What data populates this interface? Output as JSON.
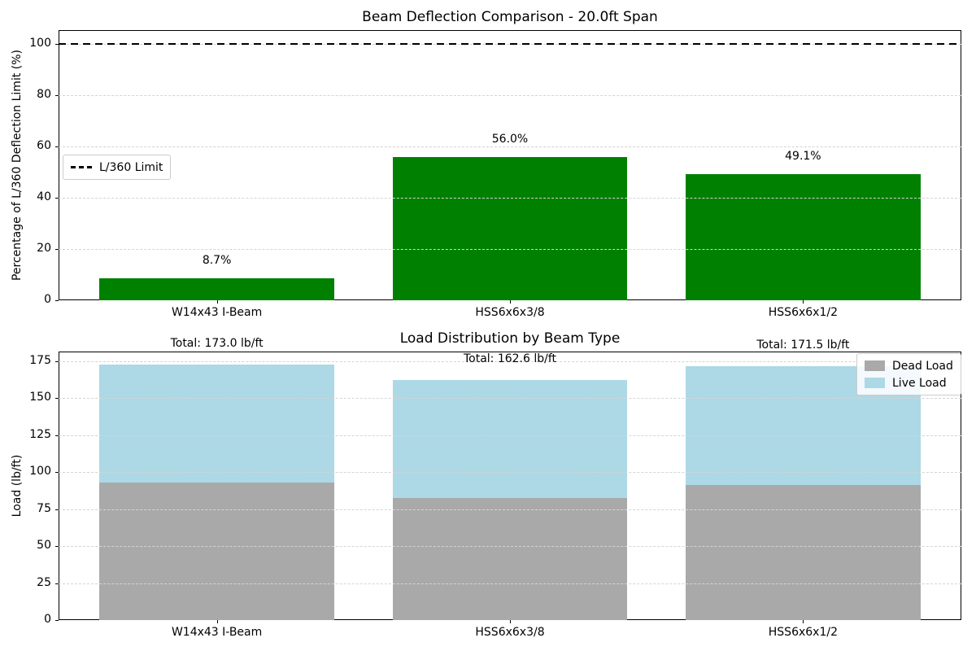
{
  "figure": {
    "background": "#ffffff"
  },
  "chart_data": [
    {
      "type": "bar",
      "title": "Beam Deflection Comparison - 20.0ft Span",
      "xlabel": "",
      "ylabel": "Percentage of L/360 Deflection Limit (%)",
      "categories": [
        "W14x43 I-Beam",
        "HSS6x6x3/8",
        "HSS6x6x1/2"
      ],
      "values": [
        8.7,
        56.0,
        49.1
      ],
      "value_labels": [
        "8.7%",
        "56.0%",
        "49.1%"
      ],
      "bar_color": "#008000",
      "yticks": [
        0,
        20,
        40,
        60,
        80,
        100
      ],
      "ylim": [
        0,
        105.4
      ],
      "grid": true,
      "reference_line": {
        "value": 100,
        "color": "#000000",
        "style": "dashed",
        "label": "L/360 Limit"
      },
      "legend": {
        "position": "center-left",
        "entries": [
          {
            "label": "L/360 Limit",
            "swatch": "dashed-line",
            "color": "#000000"
          }
        ]
      }
    },
    {
      "type": "stacked-bar",
      "title": "Load Distribution by Beam Type",
      "xlabel": "",
      "ylabel": "Load (lb/ft)",
      "categories": [
        "W14x43 I-Beam",
        "HSS6x6x3/8",
        "HSS6x6x1/2"
      ],
      "series": [
        {
          "name": "Dead Load",
          "color": "#a9a9a9",
          "values": [
            93.0,
            82.6,
            91.5
          ]
        },
        {
          "name": "Live Load",
          "color": "#add8e6",
          "values": [
            80.0,
            80.0,
            80.0
          ]
        }
      ],
      "totals": [
        173.0,
        162.6,
        171.5
      ],
      "total_labels": [
        "Total: 173.0 lb/ft",
        "Total: 162.6 lb/ft",
        "Total: 171.5 lb/ft"
      ],
      "yticks": [
        0,
        25,
        50,
        75,
        100,
        125,
        150,
        175
      ],
      "ylim": [
        0,
        181.6
      ],
      "grid": true,
      "legend": {
        "position": "top-right",
        "entries": [
          {
            "label": "Dead Load",
            "color": "#a9a9a9"
          },
          {
            "label": "Live Load",
            "color": "#add8e6"
          }
        ]
      }
    }
  ]
}
